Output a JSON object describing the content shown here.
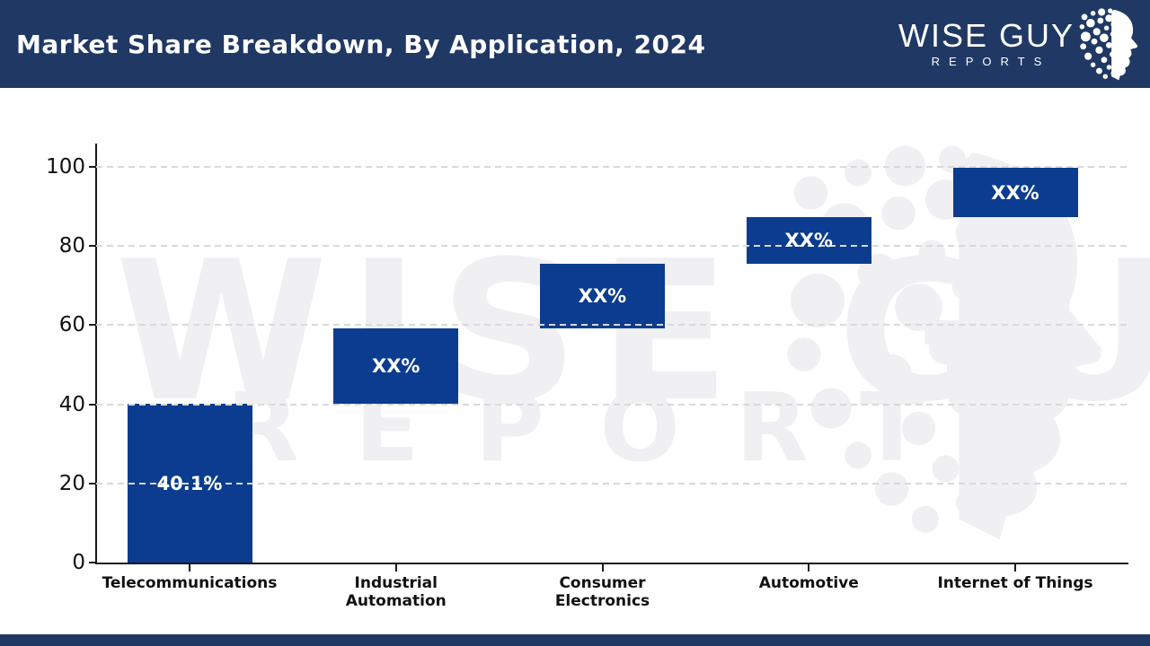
{
  "header": {
    "title": "Market Share Breakdown, By Application, 2024",
    "logo": {
      "line1": "WISE GUY",
      "line2": "REPORTS"
    }
  },
  "watermark": {
    "line1": "WISE GUY",
    "line2": "REPORTS"
  },
  "colors": {
    "header_bg": "#203864",
    "bar": "#0b3c8f",
    "grid": "#d9d9d9",
    "axis": "#1a1a1a",
    "bar_label": "#ffffff",
    "watermark": "#f0f0f2"
  },
  "chart_data": {
    "type": "bar",
    "subtype": "waterfall",
    "title": "Market Share Breakdown, By Application, 2024",
    "xlabel": "",
    "ylabel": "",
    "ylim": [
      0,
      105
    ],
    "yticks": [
      0,
      20,
      40,
      60,
      80,
      100
    ],
    "grid": "dashed-horizontal",
    "legend": "none",
    "categories": [
      "Telecommunications",
      "Industrial\nAutomation",
      "Consumer\nElectronics",
      "Automotive",
      "Internet of Things"
    ],
    "segments": [
      {
        "category": "Telecommunications",
        "start": 0,
        "end": 40.1,
        "label": "40.1%"
      },
      {
        "category": "Industrial Automation",
        "start": 40.1,
        "end": 59.2,
        "label": "XX%"
      },
      {
        "category": "Consumer Electronics",
        "start": 59.2,
        "end": 75.4,
        "label": "XX%"
      },
      {
        "category": "Automotive",
        "start": 75.4,
        "end": 87.3,
        "label": "XX%"
      },
      {
        "category": "Internet of Things",
        "start": 87.3,
        "end": 99.7,
        "label": "XX%"
      }
    ]
  }
}
